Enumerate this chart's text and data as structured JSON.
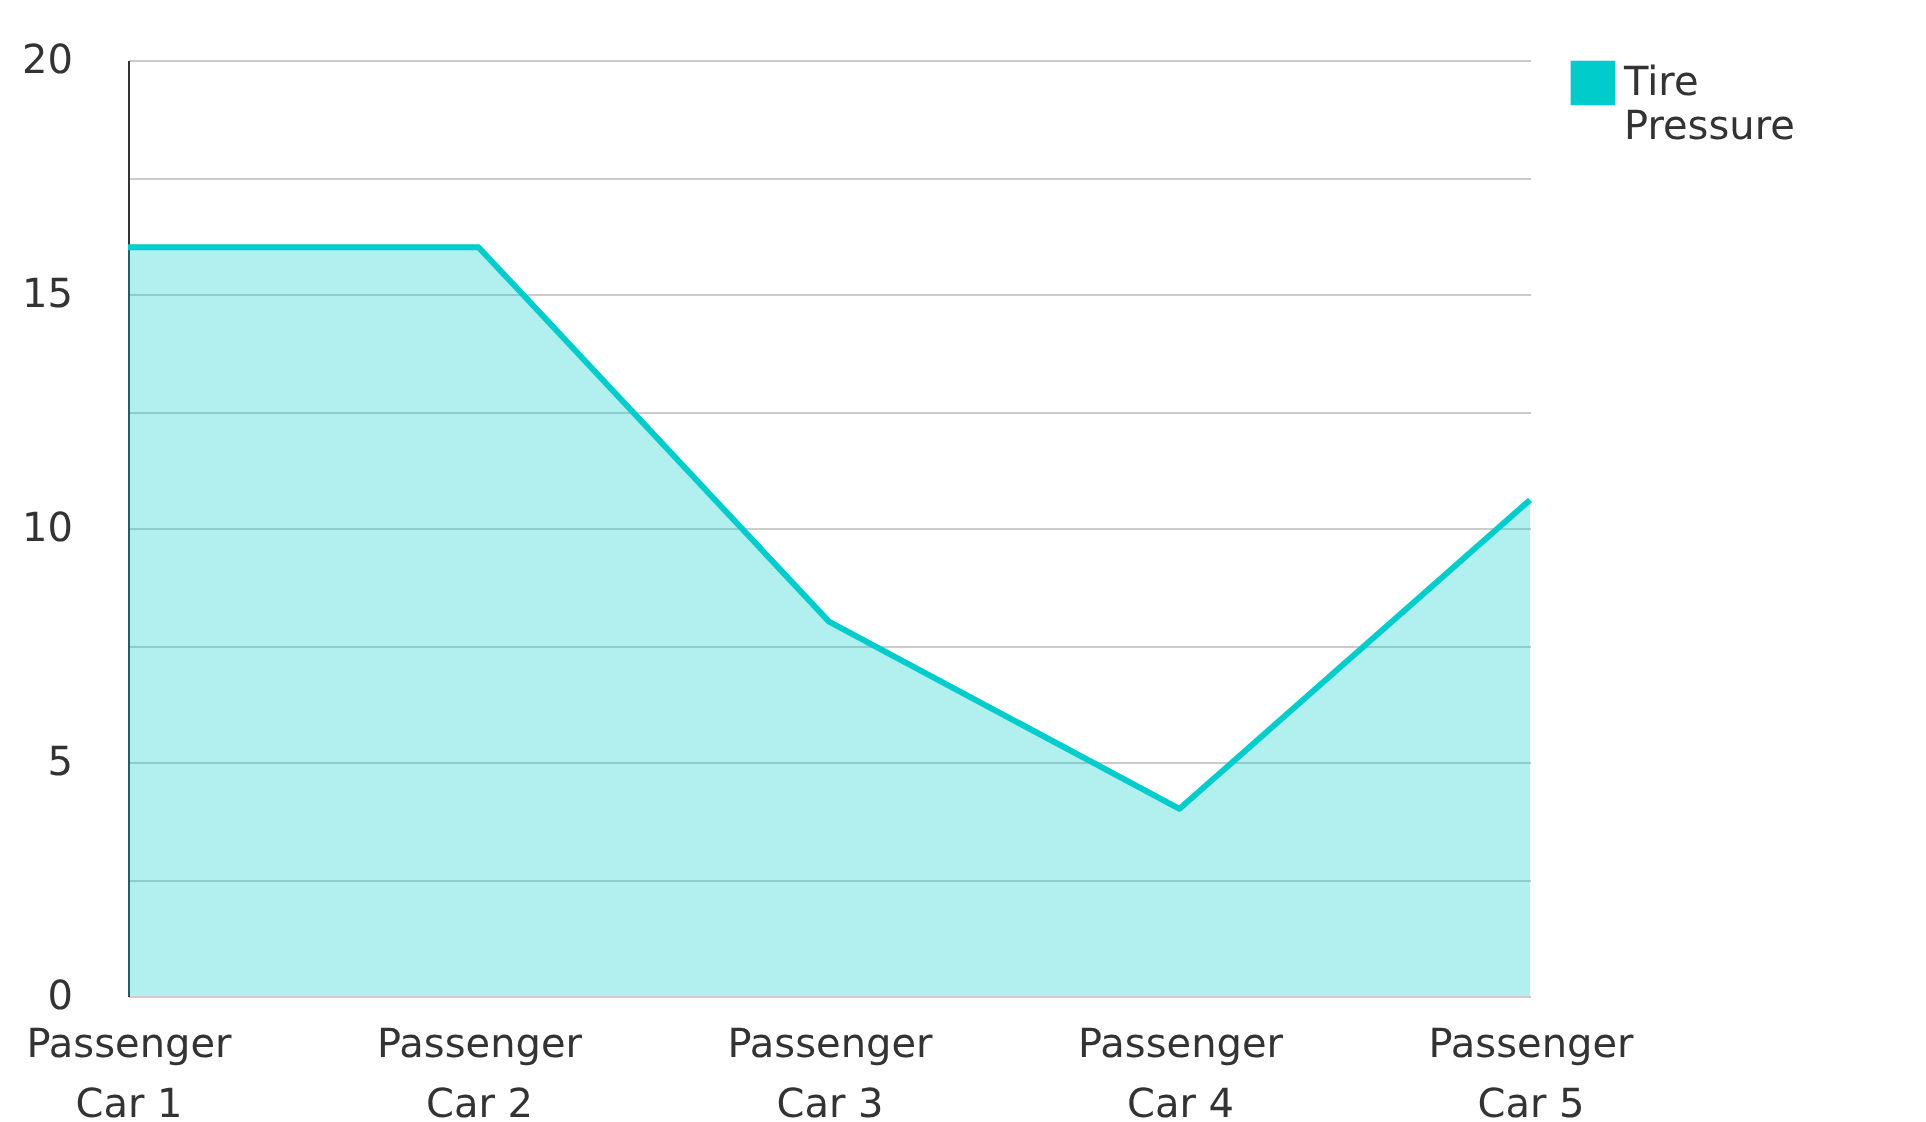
{
  "chart_data": {
    "type": "area",
    "categories": [
      "Passenger Car 1",
      "Passenger Car 2",
      "Passenger Car 3",
      "Passenger Car 4",
      "Passenger Car 5"
    ],
    "series": [
      {
        "name": "Tire Pressure",
        "color": "#00cccc",
        "values": [
          16,
          16,
          8,
          4,
          10.6
        ]
      }
    ],
    "ylim": [
      0,
      20
    ],
    "yticks": [
      0,
      {
        "value": 2.5,
        "label": null
      },
      5,
      {
        "value": 7.5,
        "label": null
      },
      10,
      {
        "value": 12.5,
        "label": null
      },
      15,
      {
        "value": 17.5,
        "label": null
      },
      20
    ],
    "grid": "y",
    "legend": "top right"
  }
}
